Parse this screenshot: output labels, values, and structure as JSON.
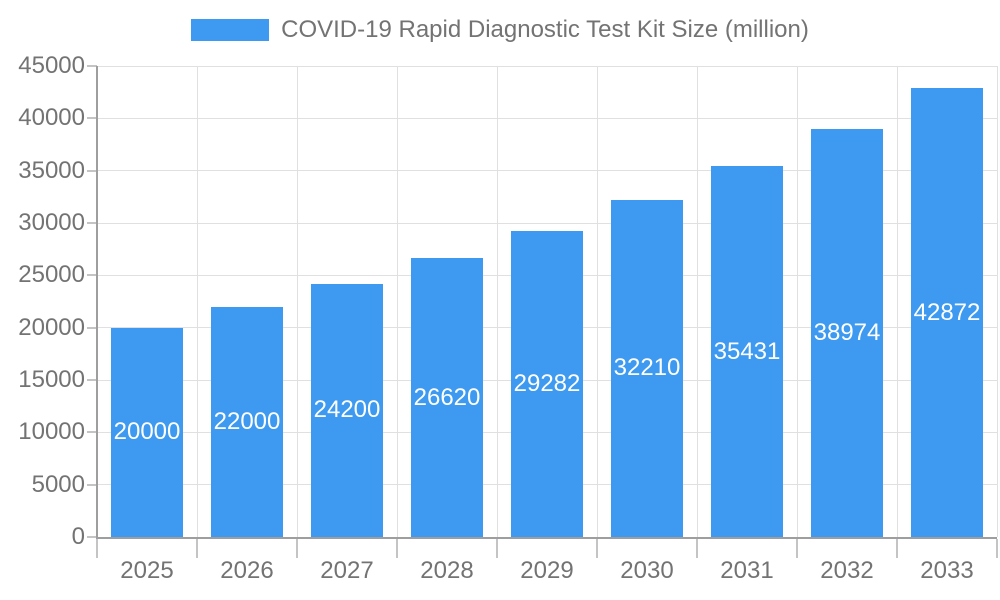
{
  "legend": {
    "label": "COVID-19 Rapid Diagnostic Test Kit Size (million)"
  },
  "chart_data": {
    "type": "bar",
    "title": "COVID-19 Rapid Diagnostic Test Kit Size (million)",
    "categories": [
      "2025",
      "2026",
      "2027",
      "2028",
      "2029",
      "2030",
      "2031",
      "2032",
      "2033"
    ],
    "values": [
      20000,
      22000,
      24200,
      26620,
      29282,
      32210,
      35431,
      38974,
      42872
    ],
    "bar_value_labels": [
      "20000",
      "22000",
      "24200",
      "26620",
      "29282",
      "32210",
      "35431",
      "38974",
      "42872"
    ],
    "xlabel": "",
    "ylabel": "",
    "ylim": [
      0,
      45000
    ],
    "ytick_step": 5000,
    "yticks": [
      0,
      5000,
      10000,
      15000,
      20000,
      25000,
      30000,
      35000,
      40000,
      45000
    ],
    "ytick_labels": [
      "0",
      "5000",
      "10000",
      "15000",
      "20000",
      "25000",
      "30000",
      "35000",
      "40000",
      "45000"
    ],
    "grid": true,
    "legend_position": "top-center",
    "colors": {
      "bar": "#3d9af0",
      "grid": "#e0e0e0",
      "axis": "#9e9e9e",
      "tick": "#c4c4c4",
      "text": "#737373",
      "bar_label_text": "#ffffff",
      "background": "#ffffff"
    }
  }
}
